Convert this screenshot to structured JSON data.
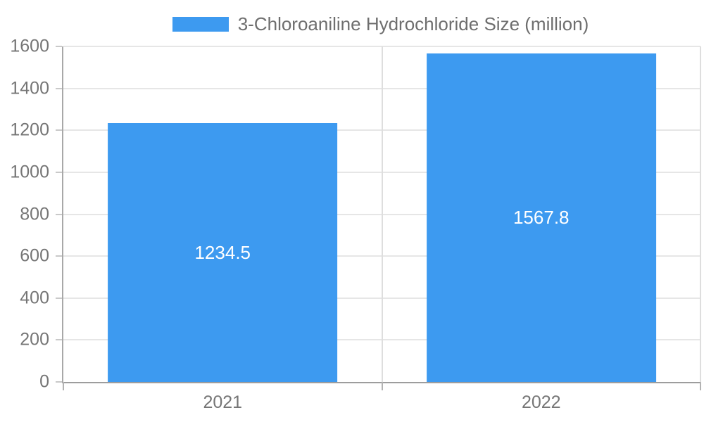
{
  "chart_data": {
    "type": "bar",
    "title": "",
    "categories": [
      "2021",
      "2022"
    ],
    "series": [
      {
        "name": "3-Chloroaniline Hydrochloride Size (million)",
        "color": "#3d9af0",
        "values": [
          1234.5,
          1567.8
        ]
      }
    ],
    "value_labels": [
      "1234.5",
      "1567.8"
    ],
    "xlabel": "",
    "ylabel": "",
    "ylim": [
      0,
      1600
    ],
    "yticks": [
      0,
      200,
      400,
      600,
      800,
      1000,
      1200,
      1400,
      1600
    ],
    "grid": true,
    "legend_position": "top-center",
    "bar_label_position": "inside-center"
  },
  "legend": {
    "label": "3-Chloroaniline Hydrochloride Size (million)"
  },
  "colors": {
    "bar": "#3d9af0",
    "axis_line": "#9d9d9d",
    "gridline_horizontal": "#e6e6e6",
    "gridline_vertical": "#dedede",
    "tick_label": "#757575",
    "legend_text": "#6e6e6e",
    "value_label": "#ffffff",
    "background": "#ffffff"
  }
}
